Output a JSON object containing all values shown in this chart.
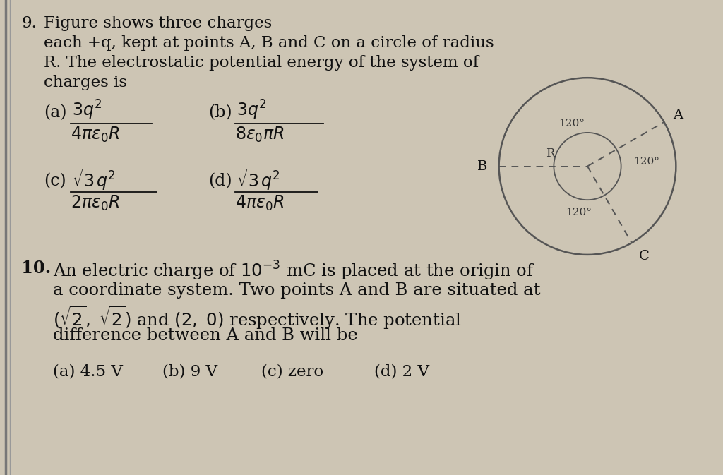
{
  "bg_color": "#cdc5b4",
  "text_color": "#111111",
  "fig_width": 10.24,
  "fig_height": 6.73,
  "q9_number": "9.",
  "q9_line1": "Figure shows three charges",
  "q9_line2": "each +q, kept at points A, B and C on a circle of radius",
  "q9_line3": "R. The electrostatic potential energy of the system of",
  "q9_line4": "charges is",
  "opt_a_label": "(a)",
  "opt_a_num": "$3q^2$",
  "opt_a_den": "$4\\pi\\varepsilon_0 R$",
  "opt_b_label": "(b)",
  "opt_b_num": "$3q^2$",
  "opt_b_den": "$8\\varepsilon_0\\pi R$",
  "opt_c_label": "(c)",
  "opt_c_num": "$\\sqrt{3}q^2$",
  "opt_c_den": "$2\\pi\\varepsilon_0 R$",
  "opt_d_label": "(d)",
  "opt_d_num": "$\\sqrt{3}q^2$",
  "opt_d_den": "$4\\pi\\varepsilon_0 R$",
  "q10_number": "10.",
  "q10_line1": "An electric charge of $10^{-3}$ mC is placed at the origin of",
  "q10_line2": "a coordinate system. Two points A and B are situated at",
  "q10_line3": "$(\\sqrt{2},\\ \\sqrt{2})$ and $(2,\\ 0)$ respectively. The potential",
  "q10_line4": "difference between A and B will be",
  "q10_opt_a": "(a) 4.5 V",
  "q10_opt_b": "(b) 9 V",
  "q10_opt_c": "(c) zero",
  "q10_opt_d": "(d) 2 V",
  "circle_color": "#555555",
  "dashed_color": "#555555"
}
